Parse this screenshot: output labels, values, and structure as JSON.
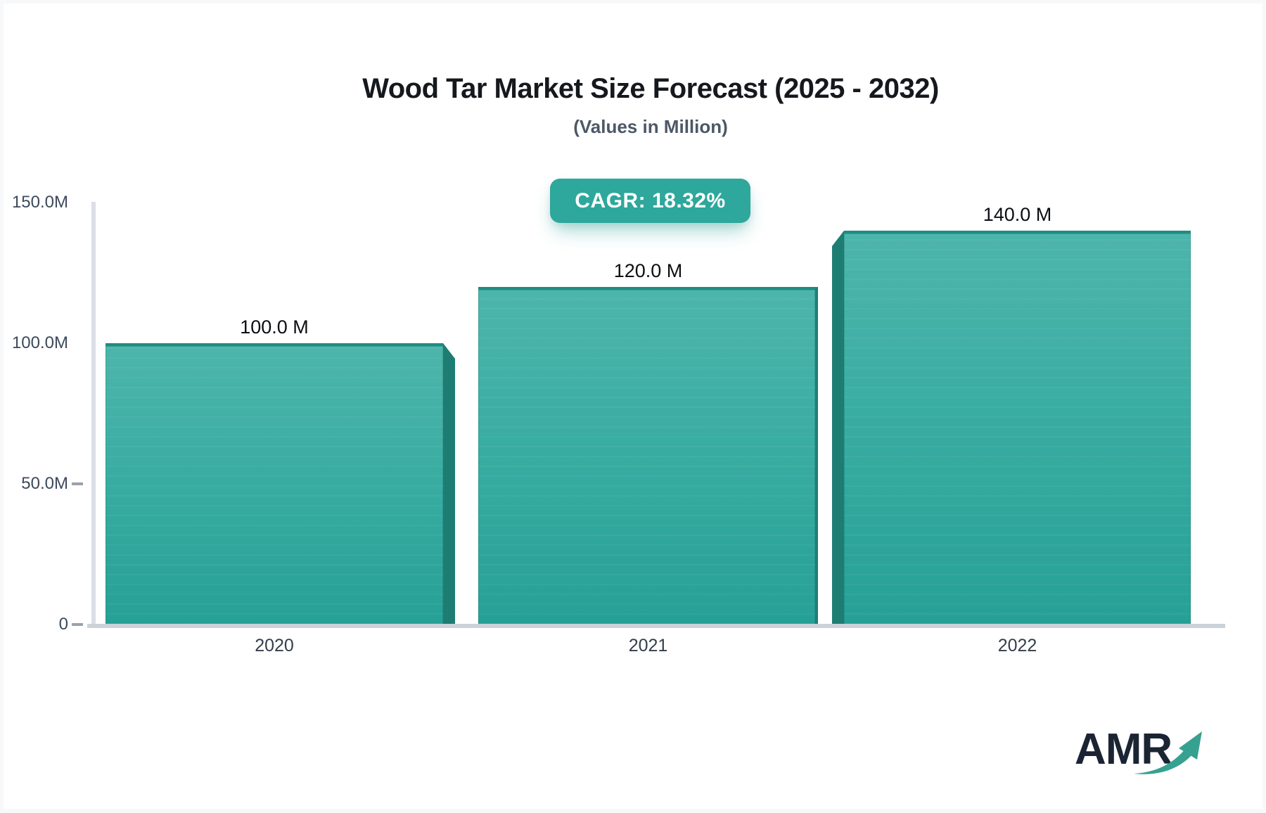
{
  "page": {
    "background": "#f7f8fa",
    "card_background": "#ffffff"
  },
  "header": {
    "title": "Wood Tar Market Size Forecast (2025 - 2032)",
    "subtitle": "(Values in Million)"
  },
  "badge": {
    "label": "CAGR: 18.32%",
    "background": "#2ea79c",
    "text_color": "#ffffff"
  },
  "chart_data": {
    "type": "bar",
    "title": "Wood Tar Market Size Forecast (2025 - 2032)",
    "subtitle": "(Values in Million)",
    "unit": "Million",
    "cagr_percent": 18.32,
    "categories": [
      "2020",
      "2021",
      "2022"
    ],
    "values": [
      100.0,
      120.0,
      140.0
    ],
    "value_labels": [
      "100.0 M",
      "120.0 M",
      "140.0 M"
    ],
    "y_ticks": [
      "150.0M",
      "100.0M",
      "50.0M",
      "0"
    ],
    "y_tick_values": [
      150,
      100,
      50,
      0
    ],
    "ylim": [
      0,
      150
    ],
    "grid": false,
    "legend": "none",
    "bar_color_top": "#4db5ab",
    "bar_color_bottom": "#26a096",
    "bar_top_edge_color": "#1e8c82",
    "bar_side_color": "#1e7d73",
    "axis_line_color": "#ccd2da"
  },
  "logo": {
    "text": "AMR",
    "text_color": "#1b2433",
    "arrow_color": "#36a191"
  }
}
